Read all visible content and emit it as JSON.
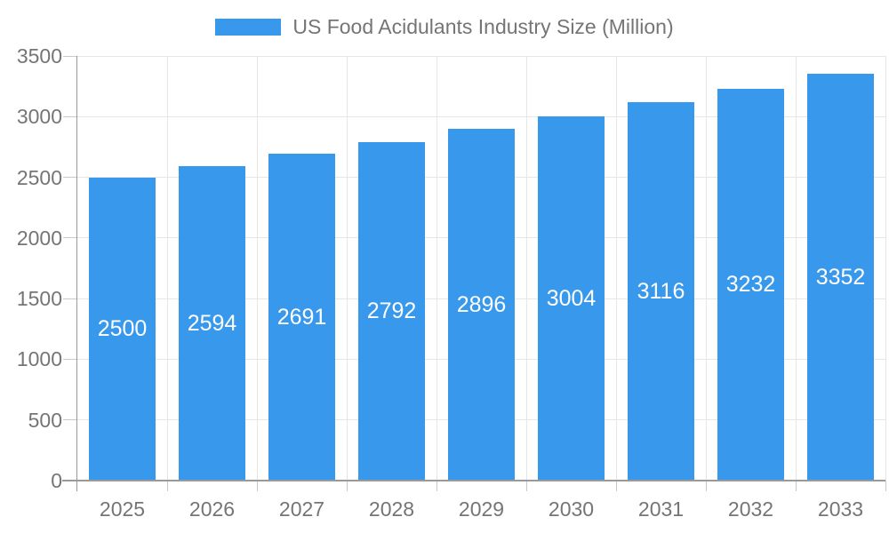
{
  "chart_data": {
    "type": "bar",
    "title": "US Food Acidulants Industry Size (Million)",
    "categories": [
      "2025",
      "2026",
      "2027",
      "2028",
      "2029",
      "2030",
      "2031",
      "2032",
      "2033"
    ],
    "values": [
      2500,
      2594,
      2691,
      2792,
      2896,
      3004,
      3116,
      3232,
      3352
    ],
    "value_labels_inside_bars": true,
    "yticks": [
      0,
      500,
      1000,
      1500,
      2000,
      2500,
      3000,
      3500
    ],
    "ylim": [
      0,
      3500
    ],
    "xlabel": "",
    "ylabel": "",
    "legend_position": "top-center",
    "grid": "horizontal and vertical light-gray gridlines",
    "colors": {
      "bar": "#3898EC",
      "bar_label": "#FFFFFF",
      "axis": "#999999",
      "grid": "#E6E6E6",
      "tick": "#C9C9C9",
      "text": "#757575",
      "background": "#FFFFFF"
    }
  }
}
